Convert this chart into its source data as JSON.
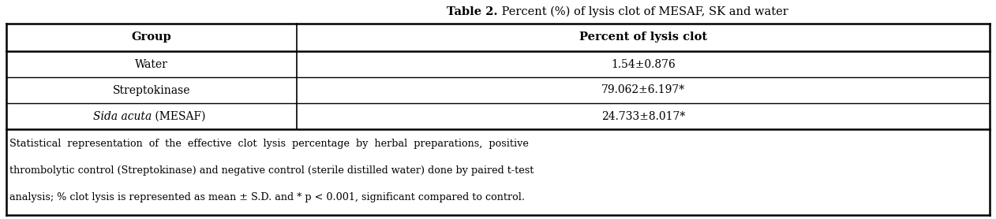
{
  "title_bold": "Table 2.",
  "title_normal": " Percent (%) of lysis clot of MESAF, SK and water",
  "col_headers": [
    "Group",
    "Percent of lysis clot"
  ],
  "rows": [
    {
      "group": "Water",
      "value": "1.54±0.876",
      "italic_part": null
    },
    {
      "group": "Streptokinase",
      "value": "79.062±6.197*",
      "italic_part": null
    },
    {
      "group": "Sida acuta (MESAF)",
      "value": "24.733±8.017*",
      "italic_part": "Sida acuta",
      "normal_part": " (MESAF)"
    }
  ],
  "footnote_lines": [
    "Statistical  representation  of  the  effective  clot  lysis  percentage  by  herbal  preparations,  positive",
    "thrombolytic control (Streptokinase) and negative control (sterile distilled water) done by paired t-test",
    "analysis; % clot lysis is represented as mean ± S.D. and * p < 0.001, significant compared to control."
  ],
  "col_split": 0.295,
  "background_color": "#ffffff",
  "title_fontsize": 10.5,
  "header_fontsize": 10.5,
  "cell_fontsize": 10.0,
  "footnote_fontsize": 9.2
}
